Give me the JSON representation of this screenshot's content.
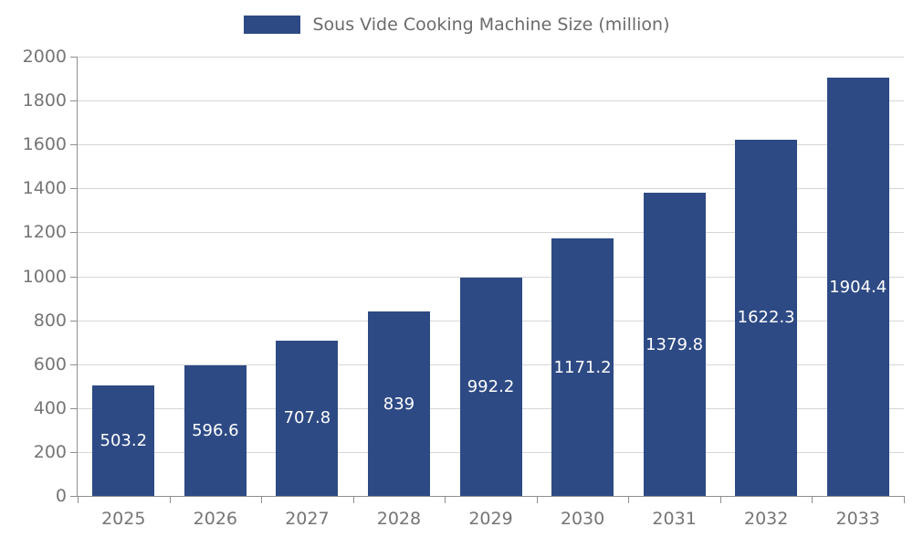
{
  "chart_data": {
    "type": "bar",
    "title": "Sous Vide Cooking Machine Size (million)",
    "categories": [
      "2025",
      "2026",
      "2027",
      "2028",
      "2029",
      "2030",
      "2031",
      "2032",
      "2033"
    ],
    "values": [
      503.2,
      596.6,
      707.8,
      839,
      992.2,
      1171.2,
      1379.8,
      1622.3,
      1904.4
    ],
    "value_labels": [
      "503.2",
      "596.6",
      "707.8",
      "839",
      "992.2",
      "1171.2",
      "1379.8",
      "1622.3",
      "1904.4"
    ],
    "xlabel": "",
    "ylabel": "",
    "ylim": [
      0,
      2000
    ],
    "ytick_interval": 200,
    "yticks": [
      0,
      200,
      400,
      600,
      800,
      1000,
      1200,
      1400,
      1600,
      1800,
      2000
    ],
    "legend_position": "top-center",
    "grid": true,
    "colors": {
      "bar": "#2e4a85",
      "bar_value_label": "#ffffff",
      "axis_text": "#757575",
      "legend_text": "#6b6b6b",
      "grid_line": "#d6d6d6",
      "axis_line": "#8f8f8f",
      "background": "#ffffff"
    }
  }
}
